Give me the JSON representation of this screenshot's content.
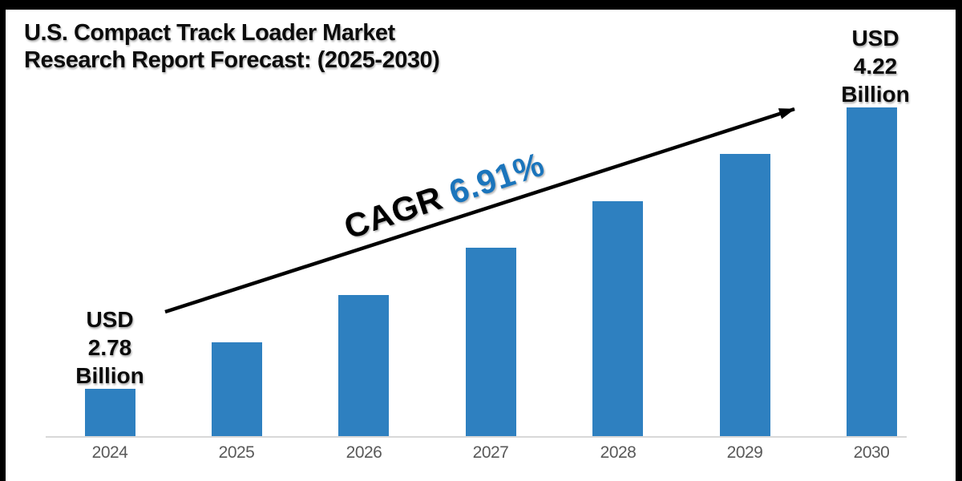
{
  "title": {
    "line1": "U.S. Compact Track Loader Market",
    "line2": "Research Report Forecast: (2025-2030)"
  },
  "annotations": {
    "start_label": {
      "line1": "USD",
      "line2": "2.78",
      "line3": "Billion"
    },
    "end_label": {
      "line1": "USD",
      "line2": "4.22",
      "line3": "Billion"
    },
    "cagr": {
      "label": "CAGR ",
      "value": "6.91%"
    }
  },
  "colors": {
    "bar": "#2e80c0",
    "cagr_value": "#1b75bc",
    "tick_label": "#595959",
    "axis_line": "#d8d8d8",
    "frame": "#000000",
    "title_text": "#0c0c0c"
  },
  "chart_data": {
    "type": "bar",
    "title": "U.S. Compact Track Loader Market Research Report Forecast: (2025-2030)",
    "categories": [
      "2024",
      "2025",
      "2026",
      "2027",
      "2028",
      "2029",
      "2030"
    ],
    "values": [
      2.78,
      3.02,
      3.26,
      3.5,
      3.74,
      3.98,
      4.22
    ],
    "unit": "USD Billion",
    "labeled_points": [
      {
        "category": "2024",
        "label": "USD 2.78 Billion"
      },
      {
        "category": "2030",
        "label": "USD 4.22 Billion"
      }
    ],
    "cagr_annotation": "CAGR 6.91%",
    "xlabel": "",
    "ylabel": "",
    "ylim": [
      2.54,
      4.3
    ],
    "grid": false,
    "legend": false,
    "bar_color": "#2e80c0"
  }
}
